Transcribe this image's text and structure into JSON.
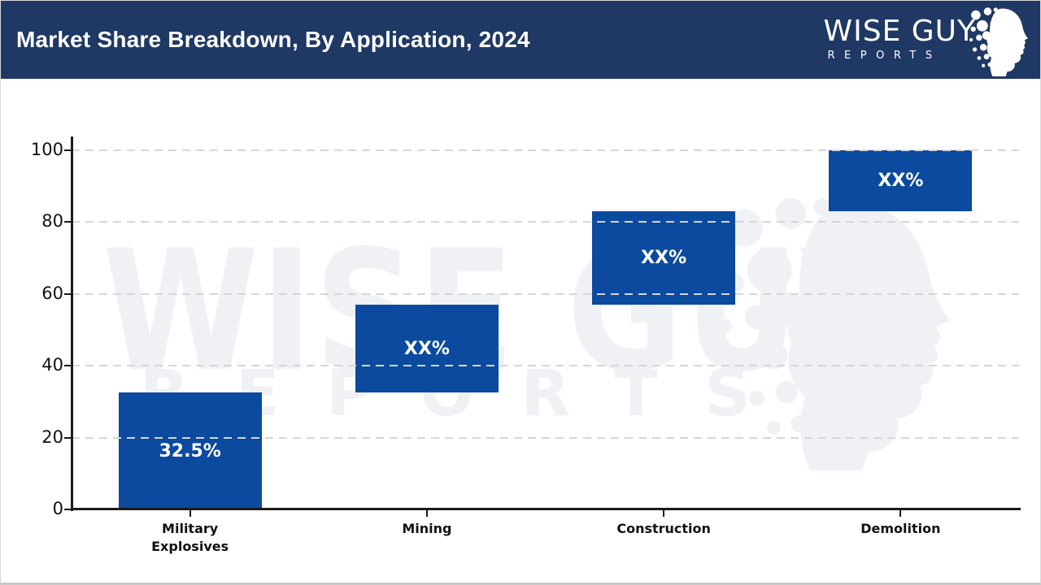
{
  "header": {
    "title": "Market Share Breakdown, By Application, 2024",
    "logo": {
      "line1": "WISE GUY",
      "line2": "REPORTS"
    }
  },
  "watermark": {
    "line1": "WISE GUY",
    "line2": "REPORTS"
  },
  "colors": {
    "header_bg": "#1F3864",
    "bar": "#0B4A9E",
    "bar_label": "#FFFFFF",
    "grid": "#D6D6D6",
    "axis": "#1A1A1A",
    "watermark": "#F0F1F4"
  },
  "chart_data": {
    "type": "bar",
    "variant": "floating-waterfall",
    "title": "Market Share Breakdown, By Application, 2024",
    "categories": [
      "Military Explosives",
      "Mining",
      "Construction",
      "Demolition"
    ],
    "bars": [
      {
        "category": "Military Explosives",
        "start": 0,
        "end": 32.5,
        "label": "32.5%"
      },
      {
        "category": "Mining",
        "start": 32.5,
        "end": 57,
        "label": "XX%"
      },
      {
        "category": "Construction",
        "start": 57,
        "end": 83,
        "label": "XX%"
      },
      {
        "category": "Demolition",
        "start": 83,
        "end": 100,
        "label": "XX%"
      }
    ],
    "xlabel": "",
    "ylabel": "",
    "ylim": [
      0,
      100
    ],
    "yticks": [
      0,
      20,
      40,
      60,
      80,
      100
    ],
    "grid": "horizontal-dashed",
    "legend": "none",
    "bar_color": "#0B4A9E",
    "label_color": "#FFFFFF"
  }
}
